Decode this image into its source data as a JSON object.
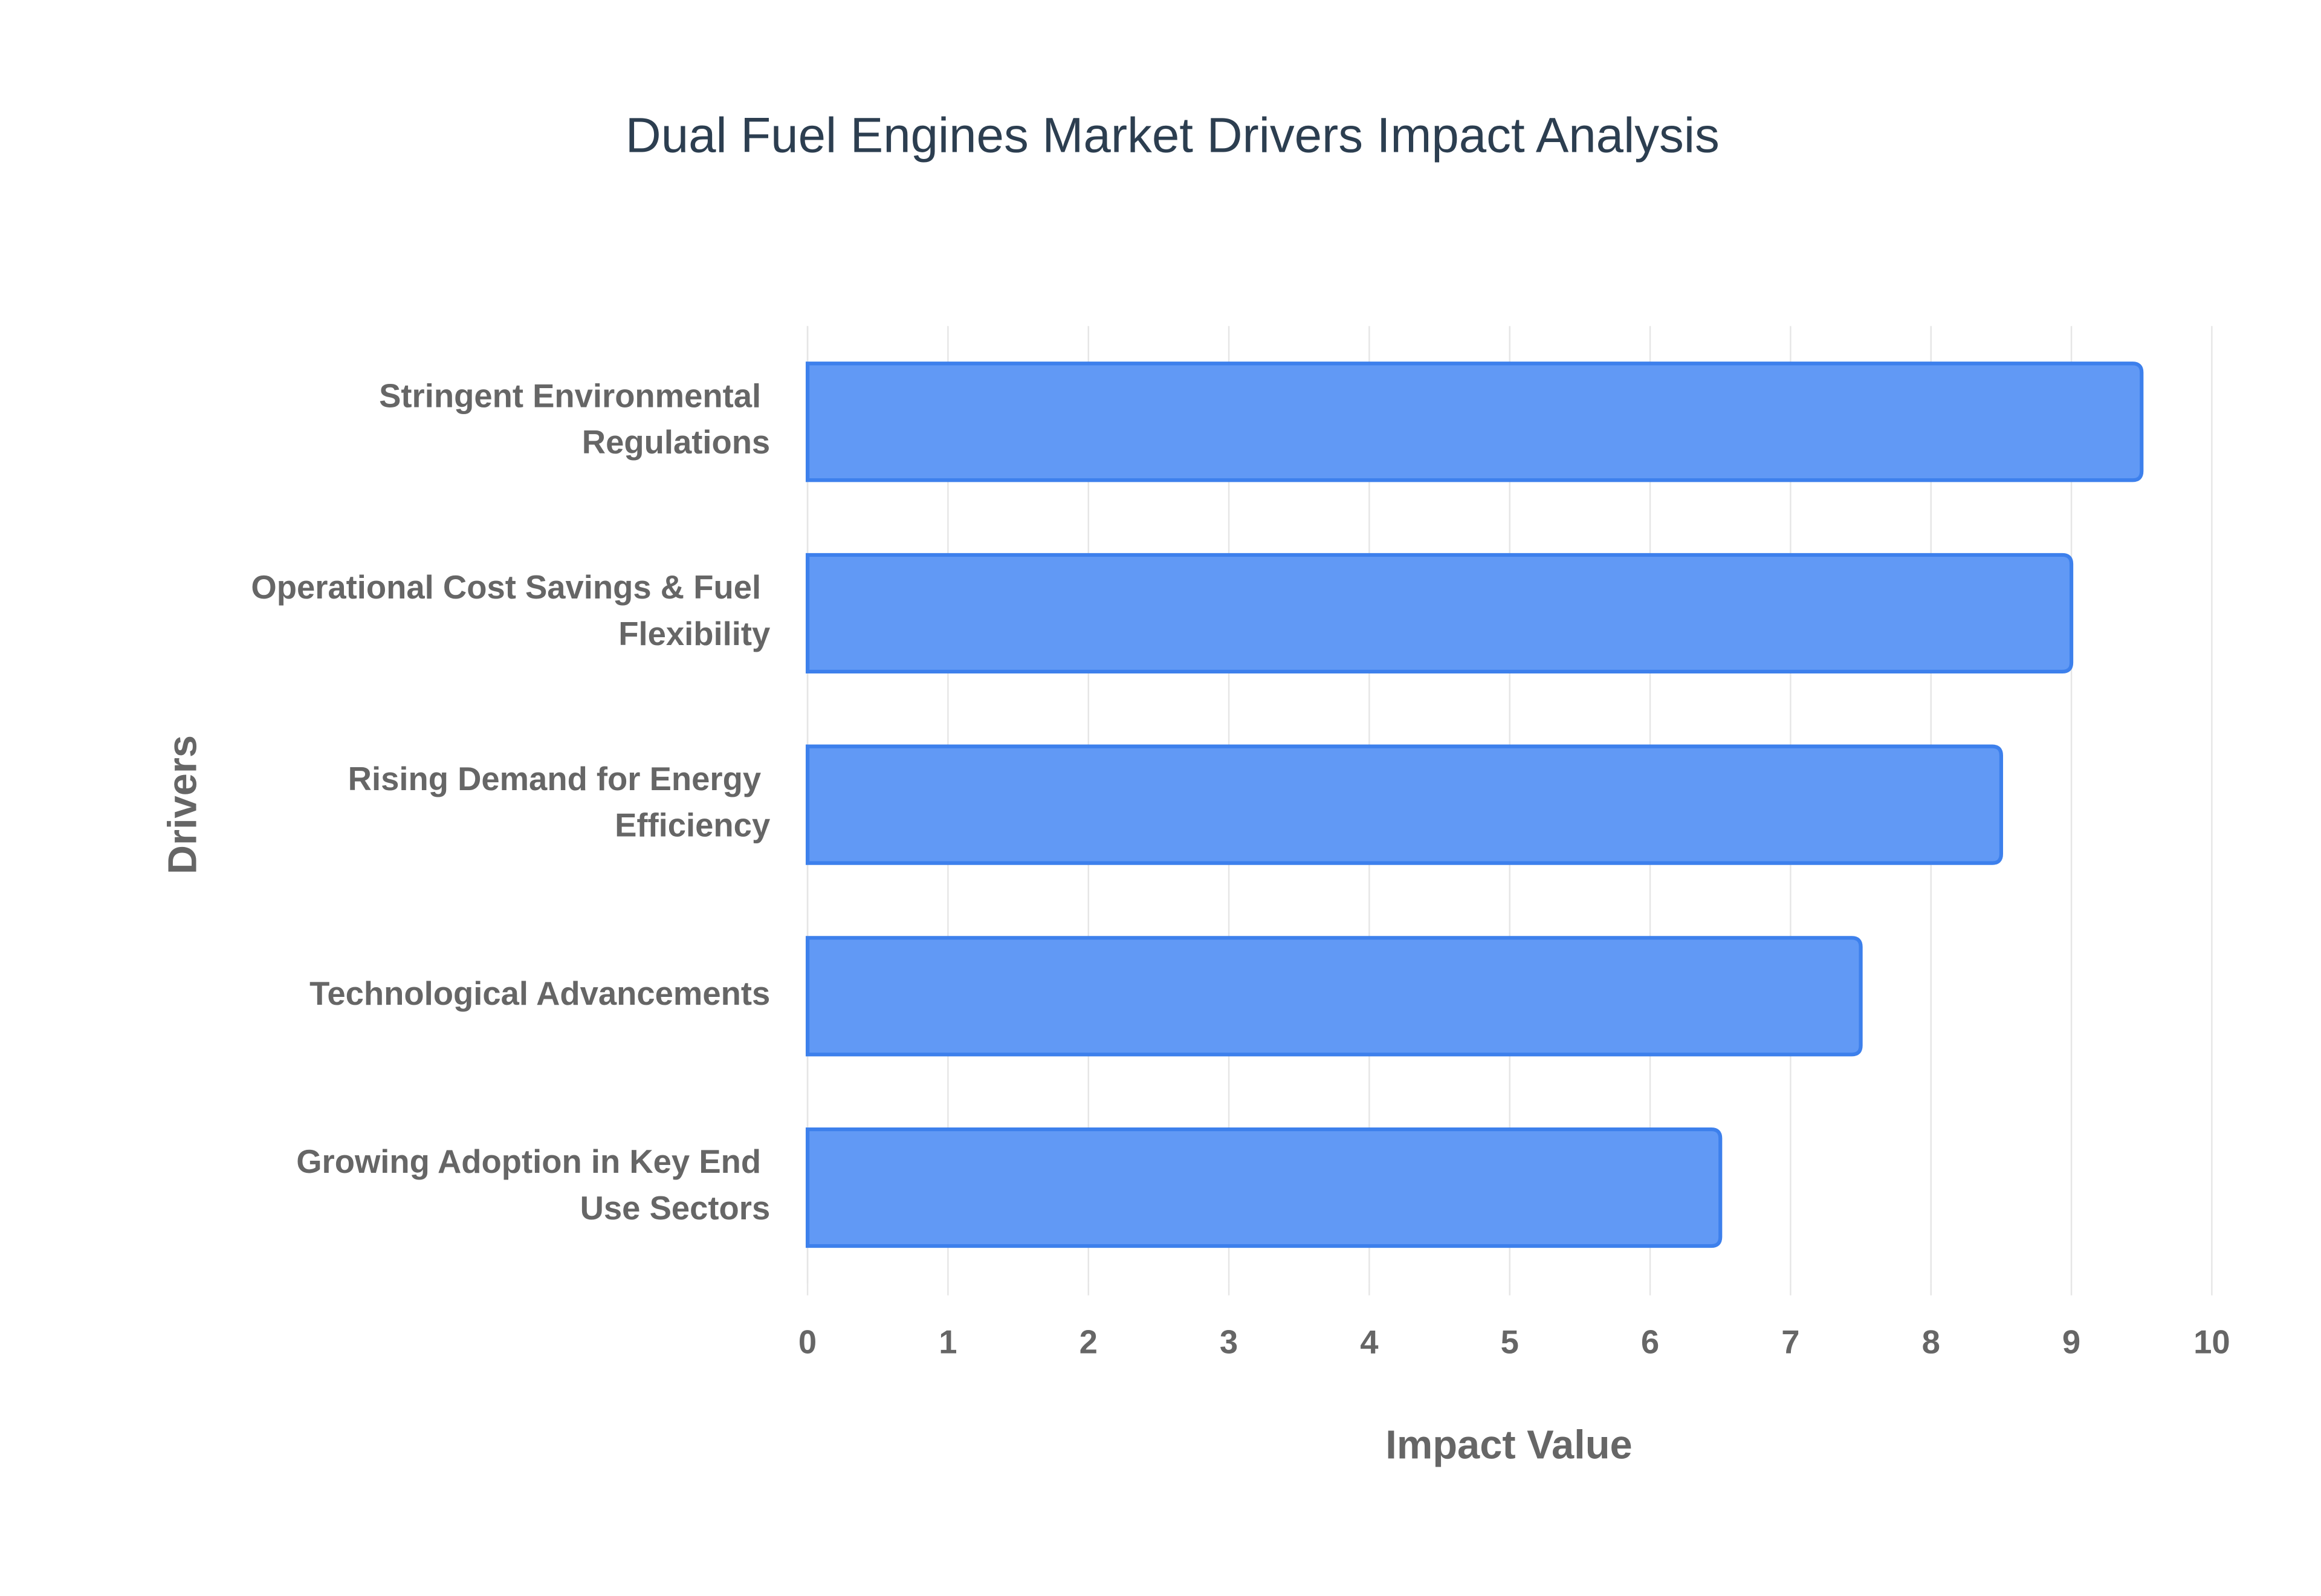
{
  "chart_data": {
    "type": "barh",
    "title": "Dual Fuel Engines Market Drivers Impact Analysis",
    "x_label": "Impact Value",
    "y_label": "Drivers",
    "categories": [
      "Stringent Environmental Regulations",
      "Operational Cost Savings & Fuel Flexibility",
      "Rising Demand for Energy Efficiency",
      "Technological Advancements",
      "Growing Adoption in Key End Use Sectors"
    ],
    "values": [
      9.5,
      9,
      8.5,
      7.5,
      6.5
    ],
    "color": "#6199f5",
    "xlim": [
      0,
      10
    ],
    "xticks": [
      0,
      1,
      2,
      3,
      4,
      5,
      6,
      7,
      8,
      9,
      10
    ],
    "grid": true
  }
}
